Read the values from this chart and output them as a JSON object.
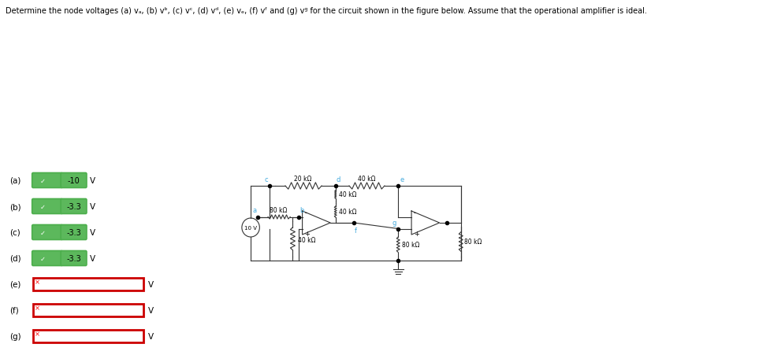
{
  "title": "Determine the node voltages (a) v_a, (b) v_b, (c) v_c, (d) v_d, (e) v_e, (f) v_f and (g) v_g for the circuit shown in the figure below. Assume that the operational amplifier is ideal.",
  "title_parts": [
    "Determine the node voltages ",
    "(a) v",
    "a",
    ", (b) v",
    "b",
    ", (c) v",
    "c",
    ", (d) v",
    "d",
    ", (e) v",
    "e",
    ", (f) v",
    "f",
    " and (g) v",
    "g",
    " for the circuit shown in the figure below. Assume that the operational amplifier is ideal."
  ],
  "answers": [
    {
      "label": "(a)",
      "value": "-10",
      "correct": true,
      "unit": "V"
    },
    {
      "label": "(b)",
      "value": "-3.3",
      "correct": true,
      "unit": "V"
    },
    {
      "label": "(c)",
      "value": "-3.3",
      "correct": true,
      "unit": "V"
    },
    {
      "label": "(d)",
      "value": "-3.3",
      "correct": true,
      "unit": "V"
    },
    {
      "label": "(e)",
      "correct": false,
      "unit": "V"
    },
    {
      "label": "(f)",
      "correct": false,
      "unit": "V"
    },
    {
      "label": "(g)",
      "correct": false,
      "unit": "V"
    }
  ],
  "correct_box_color": "#5cb85c",
  "correct_box_border": "#4cae4c",
  "wrong_box_color": "#ffffff",
  "wrong_box_border": "#cc0000",
  "bg_color": "#ffffff",
  "node_label_color": "#44aadd",
  "wire_color": "#333333"
}
